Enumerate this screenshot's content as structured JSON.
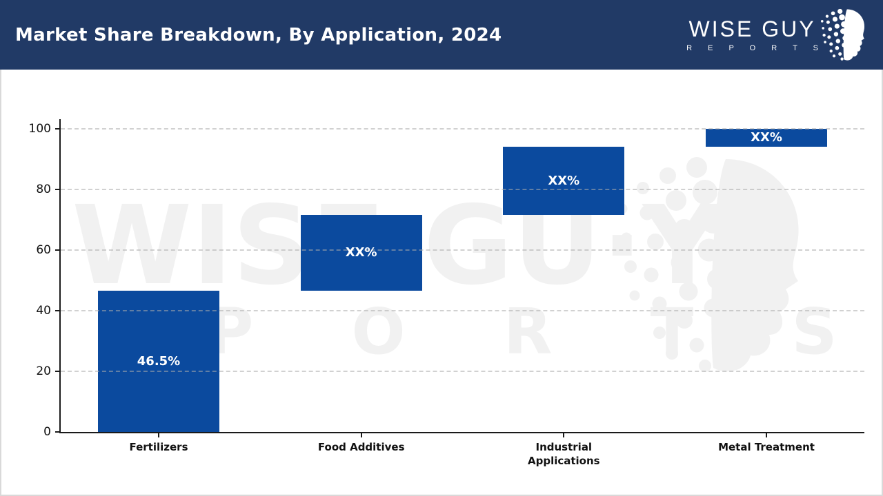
{
  "header": {
    "title": "Market Share Breakdown, By Application, 2024",
    "logo": {
      "line1": "WISE GUY",
      "line2": "R E P O R T S"
    }
  },
  "watermark": {
    "line1": "WISE GU·Y",
    "line2": "P O R T S"
  },
  "chart_data": {
    "type": "bar",
    "subtype": "waterfall",
    "title": "Market Share Breakdown, By Application, 2024",
    "categories": [
      "Fertilizers",
      "Food Additives",
      "Industrial Applications",
      "Metal Treatment"
    ],
    "segments": [
      {
        "start": 0,
        "end": 46.5
      },
      {
        "start": 46.5,
        "end": 71.5
      },
      {
        "start": 71.5,
        "end": 94
      },
      {
        "start": 94,
        "end": 100
      }
    ],
    "bar_labels": [
      "46.5%",
      "XX%",
      "XX%",
      "XX%"
    ],
    "ylim": [
      0,
      100
    ],
    "yticks": [
      0,
      20,
      40,
      60,
      80,
      100
    ],
    "grid": "dashed-horizontal",
    "legend": "none",
    "bar_color": "#0b4a9e",
    "header_color": "#213a66",
    "gridline_color": "#acacac",
    "watermark_color": "#f1f1f1"
  }
}
